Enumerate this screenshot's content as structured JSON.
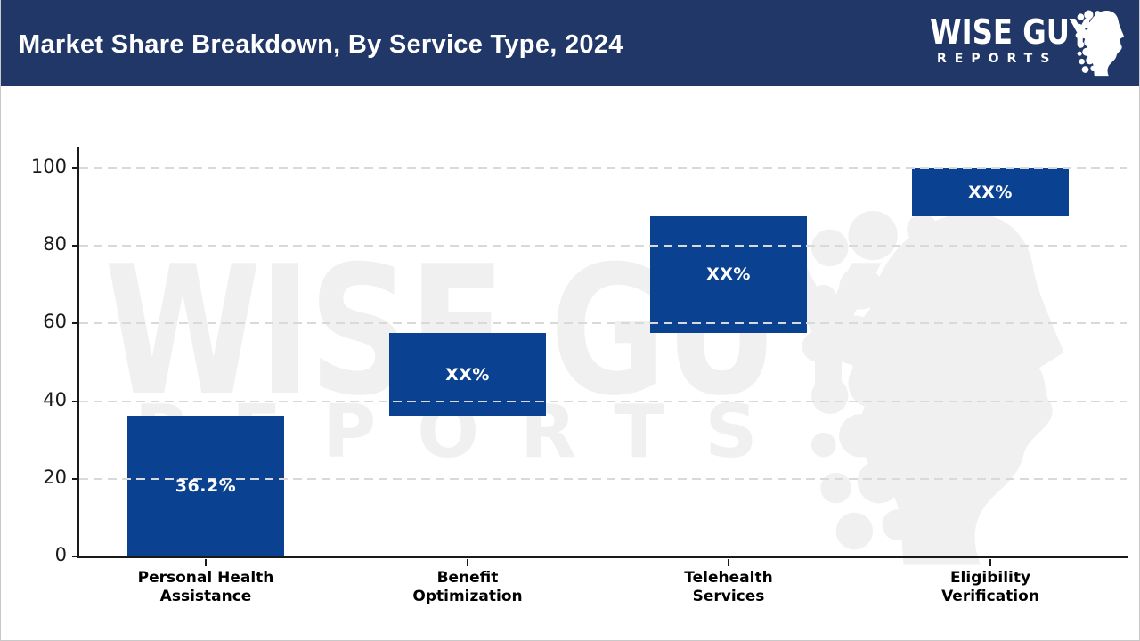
{
  "page": {
    "bg": "#ffffff",
    "border_color": "#c9c9c9"
  },
  "header": {
    "bg": "#213768",
    "title": "Market Share Breakdown, By Service Type, 2024",
    "logo": {
      "name": "WISE GUY",
      "sub": "REPORTS"
    }
  },
  "watermark": {
    "name": "WISE GUY",
    "sub": "REPORTS",
    "color": "#f0f0f1"
  },
  "chart_data": {
    "type": "bar",
    "variant": "stacked-waterfall",
    "title": "Market Share Breakdown, By Service Type, 2024",
    "xlabel": "",
    "ylabel": "",
    "ylim": [
      0,
      100
    ],
    "yticks": [
      0,
      20,
      40,
      60,
      80,
      100
    ],
    "grid": {
      "axis": "y",
      "style": "dashed",
      "color": "#d9d9d9"
    },
    "bar_color": "#0a4191",
    "bar_label_color": "#ffffff",
    "categories": [
      {
        "line1": "Personal Health",
        "line2": "Assistance"
      },
      {
        "line1": "Benefit",
        "line2": "Optimization"
      },
      {
        "line1": "Telehealth",
        "line2": "Services"
      },
      {
        "line1": "Eligibility",
        "line2": "Verification"
      }
    ],
    "segments": [
      {
        "category": "Personal Health Assistance",
        "start": 0,
        "end": 36.2,
        "label": "36.2%"
      },
      {
        "category": "Benefit Optimization",
        "start": 36.2,
        "end": 57.6,
        "label": "XX%"
      },
      {
        "category": "Telehealth Services",
        "start": 57.6,
        "end": 87.6,
        "label": "XX%"
      },
      {
        "category": "Eligibility Verification",
        "start": 87.6,
        "end": 100,
        "label": "XX%"
      }
    ]
  }
}
